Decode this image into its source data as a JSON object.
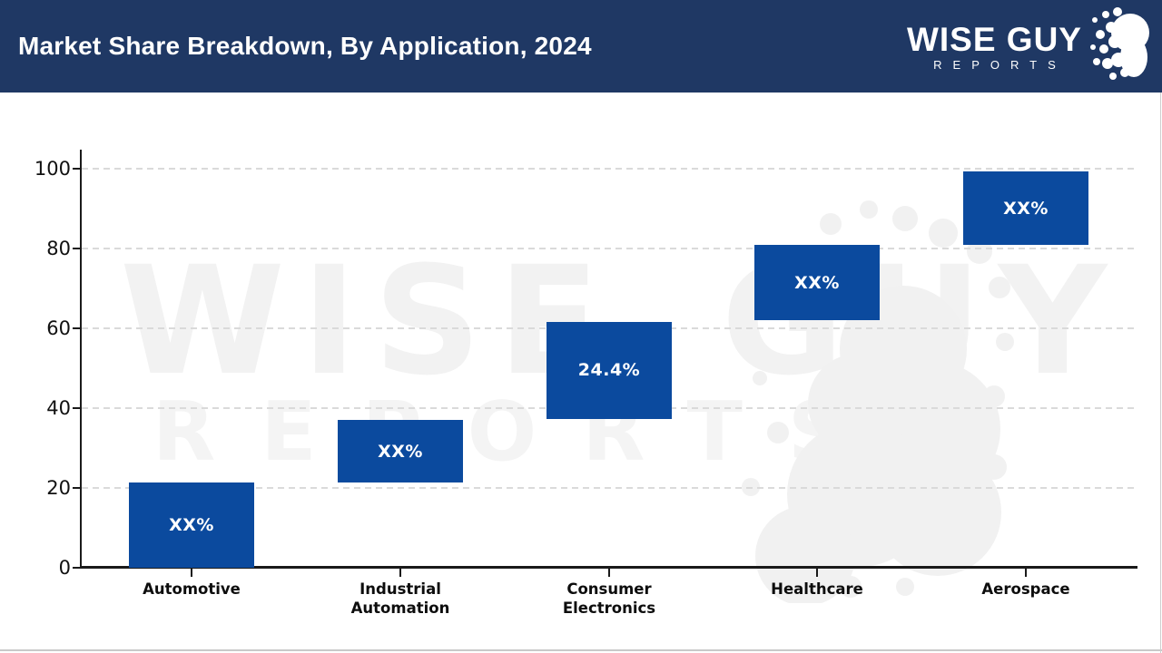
{
  "header": {
    "title": "Market Share Breakdown, By Application, 2024",
    "logo": {
      "name_line": "WISE GUY",
      "sub_line": "REPORTS"
    }
  },
  "watermark": {
    "name_line": "WISE GUY",
    "sub_line": "REPORTS"
  },
  "colors": {
    "header_bg": "#1F3864",
    "bar": "#0B4A9E",
    "bar_label_text": "#FFFFFF",
    "gridline": "#DADADA",
    "axis": "#1A1A1A",
    "watermark": "#F2F2F2"
  },
  "chart_data": {
    "type": "bar",
    "subtype": "waterfall",
    "title": "Market Share Breakdown, By Application, 2024",
    "xlabel": "",
    "ylabel": "",
    "ylim": [
      0,
      100
    ],
    "yticks": [
      0,
      20,
      40,
      60,
      80,
      100
    ],
    "grid": "horizontal-dashed",
    "legend": "none",
    "bar_color": "#0B4A9E",
    "categories": [
      "Automotive",
      "Industrial Automation",
      "Consumer Electronics",
      "Healthcare",
      "Aerospace"
    ],
    "category_label_lines": [
      [
        "Automotive"
      ],
      [
        "Industrial",
        "Automation"
      ],
      [
        "Consumer",
        "Electronics"
      ],
      [
        "Healthcare"
      ],
      [
        "Aerospace"
      ]
    ],
    "bars": [
      {
        "category": "Automotive",
        "start": 0,
        "end": 21.4,
        "label": "XX%"
      },
      {
        "category": "Industrial Automation",
        "start": 21.4,
        "end": 37.0,
        "label": "XX%"
      },
      {
        "category": "Consumer Electronics",
        "start": 37.3,
        "end": 61.7,
        "value": 24.4,
        "label": "24.4%"
      },
      {
        "category": "Healthcare",
        "start": 62.0,
        "end": 80.9,
        "label": "XX%"
      },
      {
        "category": "Aerospace",
        "start": 80.9,
        "end": 99.3,
        "label": "XX%"
      }
    ]
  }
}
